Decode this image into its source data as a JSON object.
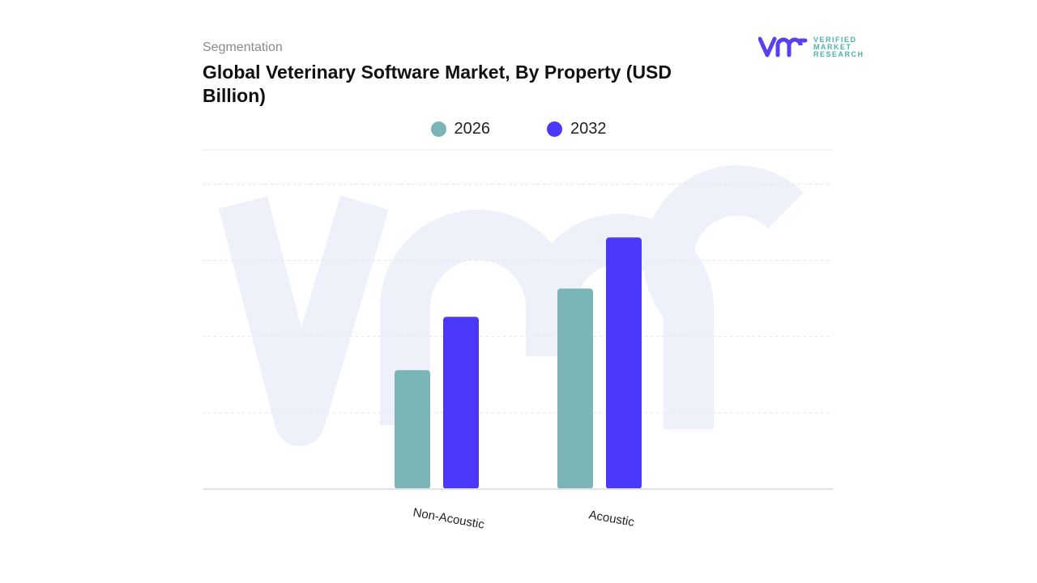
{
  "header": {
    "segment_label": "Segmentation",
    "title": "Global Veterinary Software Market, By Property (USD Billion)"
  },
  "logo": {
    "mark": "vmr",
    "text_lines": [
      "VERIFIED",
      "MARKET",
      "RESEARCH"
    ],
    "color": "#5a3ff0",
    "text_color": "#4bb3a8"
  },
  "chart_data": {
    "type": "bar",
    "title": "Global Veterinary Software Market, By Property (USD Billion)",
    "categories": [
      "Non-Acoustic",
      "Acoustic"
    ],
    "series": [
      {
        "name": "2026",
        "color": "#7bb5b8",
        "values": [
          1.56,
          2.63
        ]
      },
      {
        "name": "2032",
        "color": "#4b39fb",
        "values": [
          2.26,
          3.3
        ]
      }
    ],
    "ylim": [
      0,
      4.45
    ],
    "gridlines": [
      1,
      2,
      3,
      4
    ],
    "grid": true,
    "y_tick_labels_shown": false,
    "legend_position": "top-center",
    "values_note": "no axis values printed; values in gridline units estimated"
  }
}
